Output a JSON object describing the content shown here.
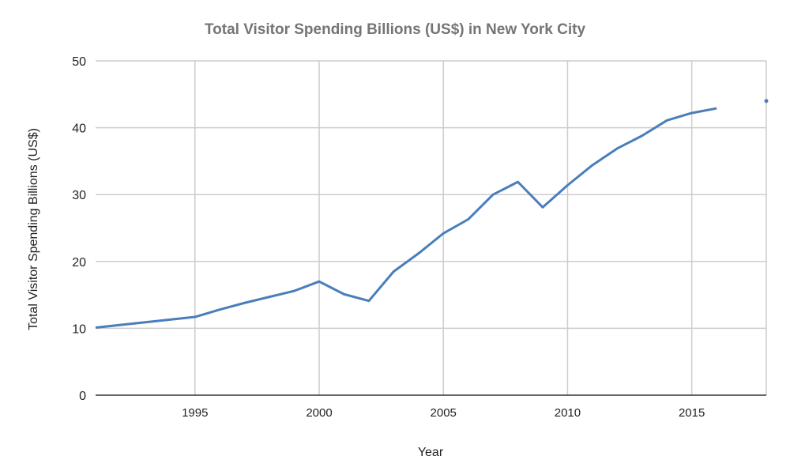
{
  "chart_data": {
    "type": "line",
    "title": "Total Visitor Spending Billions (US$) in New York City",
    "xlabel": "Year",
    "ylabel": "Total Visitor Spending Billions (US$)",
    "xlim": [
      1991,
      2018
    ],
    "ylim": [
      0,
      50
    ],
    "xticks": [
      1995,
      2000,
      2005,
      2010,
      2015
    ],
    "yticks": [
      0,
      10,
      20,
      30,
      40,
      50
    ],
    "grid": true,
    "legend": "none",
    "color": "#4a7ebb",
    "x": [
      1991,
      1992,
      1993,
      1994,
      1995,
      1996,
      1997,
      1998,
      1999,
      2000,
      2001,
      2002,
      2003,
      2004,
      2005,
      2006,
      2007,
      2008,
      2009,
      2010,
      2011,
      2012,
      2013,
      2014,
      2015,
      2016,
      2017,
      2018
    ],
    "values": [
      10.1,
      10.5,
      10.9,
      11.3,
      11.7,
      12.8,
      13.8,
      14.7,
      15.6,
      17.0,
      15.1,
      14.1,
      18.5,
      21.2,
      24.2,
      26.3,
      30.0,
      31.9,
      28.1,
      31.4,
      34.4,
      36.9,
      38.8,
      41.1,
      42.2,
      42.9,
      null,
      44.0
    ]
  }
}
